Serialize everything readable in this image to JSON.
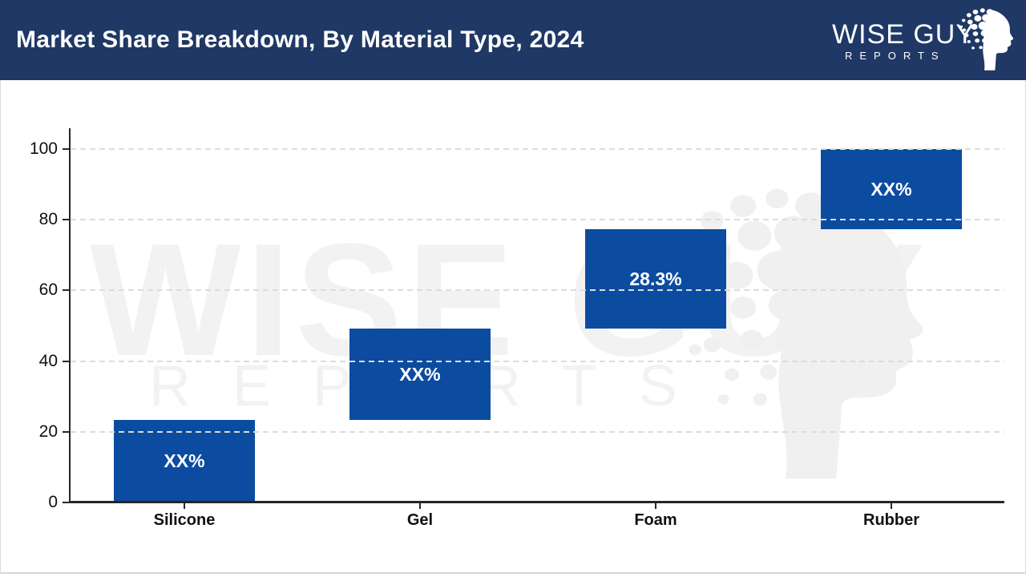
{
  "header": {
    "title": "Market Share Breakdown, By Material Type, 2024",
    "logo": {
      "line1": "WISE GUY",
      "line2": "REPORTS",
      "face_icon": "dotted-face-profile"
    }
  },
  "watermark": {
    "line1": "WISE GUY",
    "line2": "REPORTS",
    "face_icon": "dotted-face-profile"
  },
  "colors": {
    "header_bg": "#1F3865",
    "bar": "#0C4CA0",
    "grid": "#DCDCDC",
    "axis": "#262626",
    "bar_label_text": "#FFFFFF",
    "watermark": "#F2F2F2"
  },
  "chart_data": {
    "type": "bar",
    "subtype": "waterfall",
    "title": "Market Share Breakdown, By Material Type, 2024",
    "categories": [
      "Silicone",
      "Gel",
      "Foam",
      "Rubber"
    ],
    "series": [
      {
        "name": "Market share (%)",
        "starts": [
          0,
          23.4,
          49.1,
          77.4
        ],
        "ends": [
          23.4,
          49.1,
          77.4,
          100
        ],
        "increments": [
          23.4,
          25.7,
          28.3,
          22.6
        ]
      }
    ],
    "bar_labels": [
      "XX%",
      "XX%",
      "28.3%",
      "XX%"
    ],
    "xlabel": "",
    "ylabel": "",
    "ylim": [
      0,
      100
    ],
    "yticks": [
      0,
      20,
      40,
      60,
      80,
      100
    ],
    "grid": "horizontal dashed, drawn above bars",
    "legend": "none"
  }
}
